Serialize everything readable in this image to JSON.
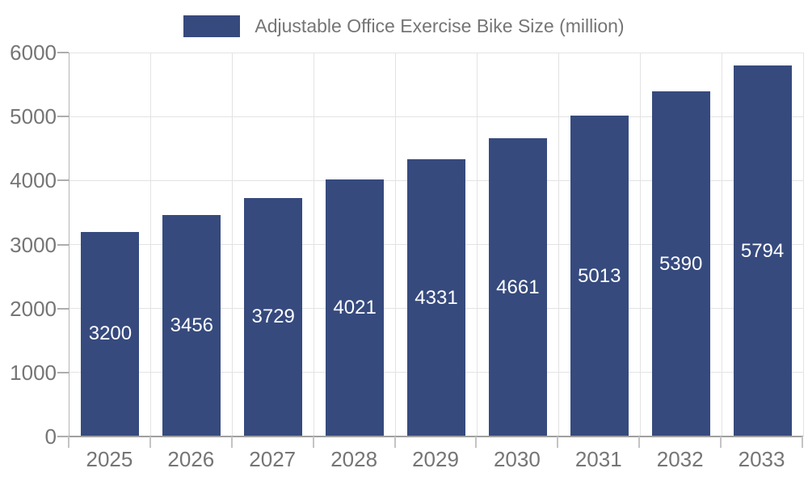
{
  "legend": {
    "label": "Adjustable Office Exercise Bike Size (million)"
  },
  "chart_data": {
    "type": "bar",
    "title": "Adjustable Office Exercise Bike Size (million)",
    "categories": [
      "2025",
      "2026",
      "2027",
      "2028",
      "2029",
      "2030",
      "2031",
      "2032",
      "2033"
    ],
    "values": [
      3200,
      3456,
      3729,
      4021,
      4331,
      4661,
      5013,
      5390,
      5794
    ],
    "series": [
      {
        "name": "Adjustable Office Exercise Bike Size (million)",
        "values": [
          3200,
          3456,
          3729,
          4021,
          4331,
          4661,
          5013,
          5390,
          5794
        ]
      }
    ],
    "xlabel": "",
    "ylabel": "",
    "ylim": [
      0,
      6000
    ],
    "y_ticks": [
      0,
      1000,
      2000,
      3000,
      4000,
      5000,
      6000
    ],
    "grid": true,
    "legend_position": "top-center",
    "value_labels_position": "inside-center",
    "colors": {
      "bar": "#364a7e",
      "value_label": "#ffffff",
      "axis_text": "#757575",
      "gridline": "#e3e3e3",
      "axis_line": "#a0a0a0"
    }
  }
}
